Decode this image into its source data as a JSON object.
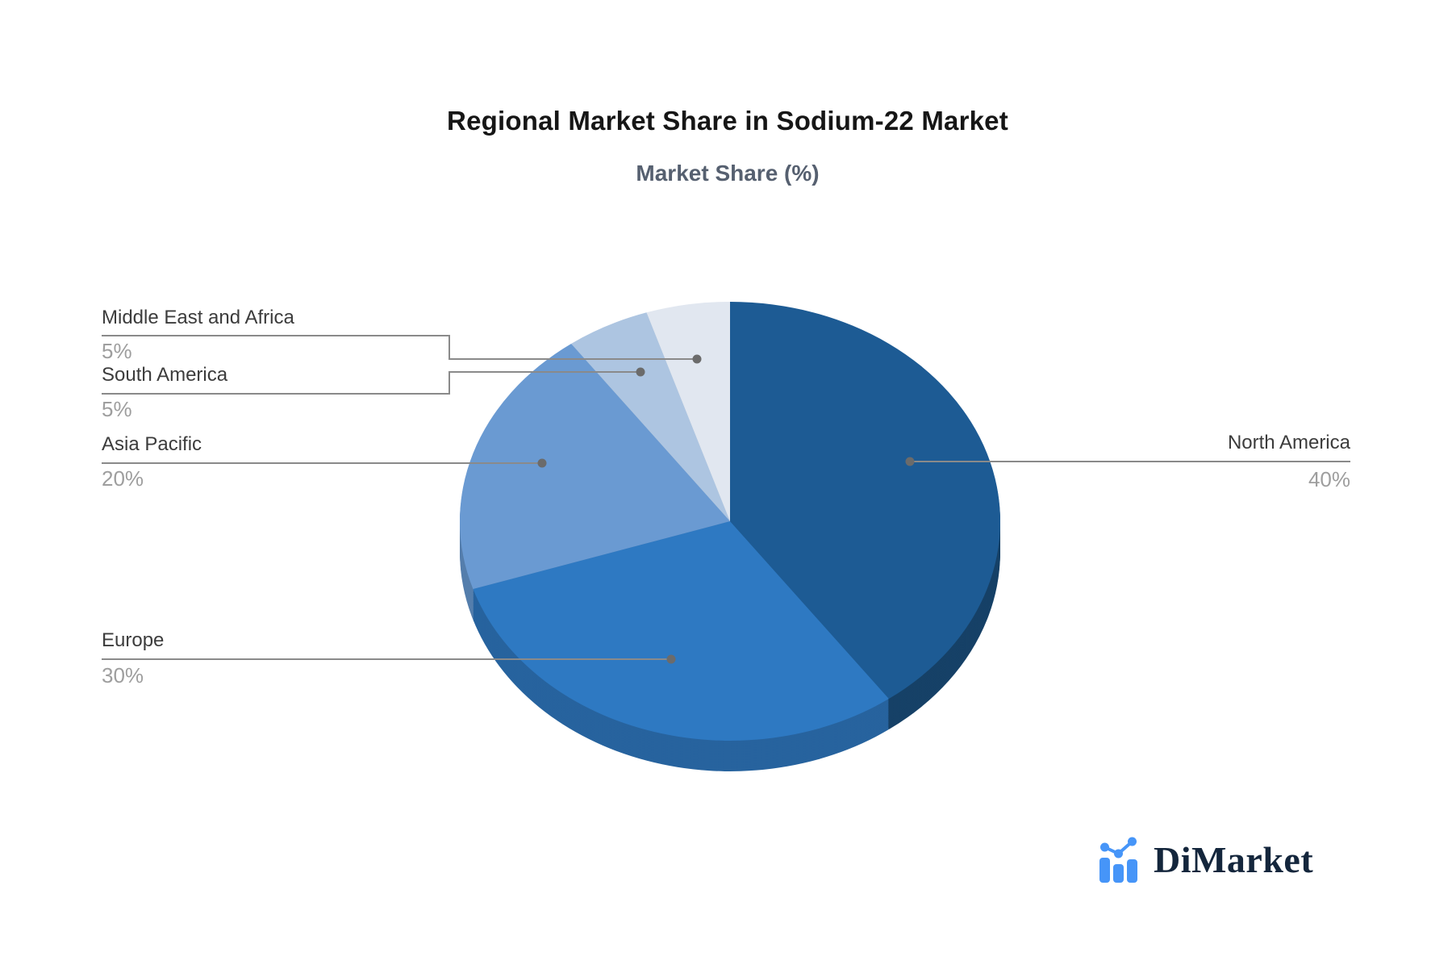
{
  "header": {
    "title": "Regional Market Share in Sodium-22 Market",
    "subtitle": "Market Share (%)"
  },
  "chart_data": {
    "type": "pie",
    "style": "3d",
    "title": "Regional Market Share in Sodium-22 Market",
    "subtitle": "Market Share (%)",
    "unit": "percent",
    "direction": "clockwise",
    "start_angle": "12-oclock",
    "legend": "none",
    "categories": [
      "North America",
      "Europe",
      "Asia Pacific",
      "South America",
      "Middle East and Africa"
    ],
    "values": [
      40,
      30,
      20,
      5,
      5
    ],
    "pct_labels": [
      "40%",
      "30%",
      "20%",
      "5%",
      "5%"
    ],
    "colors": [
      "#1D5B94",
      "#2E79C2",
      "#6A9AD2",
      "#ADC5E1",
      "#E1E7F0"
    ],
    "side_colors": [
      "#164167",
      "#27639E",
      "#557EAC",
      "#8EA6C2",
      "#BFC9D6"
    ],
    "label_color": "#3C3C3C",
    "pct_color": "#9E9E9E",
    "leader_color": "#8A8A8A"
  },
  "logo": {
    "text": "DiMarket",
    "icon": "bar-chart-trend-icon",
    "text_color": "#14263C",
    "icon_color": "#4695F8"
  }
}
